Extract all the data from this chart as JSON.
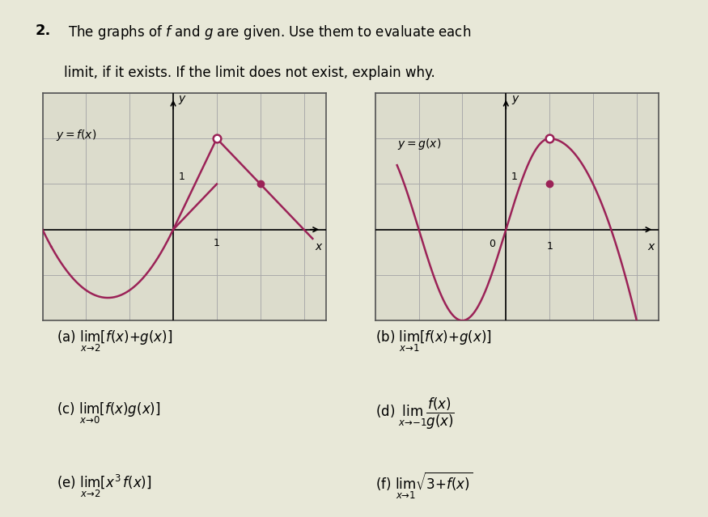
{
  "title_bold": "2.",
  "title_text": " The graphs of $f$ and $g$ are given. Use them to evaluate each\n    limit, if it exists. If the limit does not exist, explain why.",
  "bg_color": "#e8e8d8",
  "graph_bg": "#dcdccc",
  "curve_color": "#9b2257",
  "grid_color": "#aaaaaa",
  "box_color": "#555555",
  "f_label": "$y = f(x)$",
  "g_label": "$y = g(x)$",
  "parts": [
    "(a) $\\lim_{x \\to 2}[f(x) + g(x)]$",
    "(b) $\\lim_{x \\to 1}[f(x) + g(x)]$",
    "(c) $\\lim_{x \\to 0}[f(x)g(x)]$",
    "(d) $\\lim_{x \\to -1}\\dfrac{f(x)}{g(x)}$",
    "(e) $\\lim_{x \\to 2}[x^3 f(x)]$",
    "(f) $\\lim_{x \\to 1}\\sqrt{3 + f(x)}$"
  ]
}
